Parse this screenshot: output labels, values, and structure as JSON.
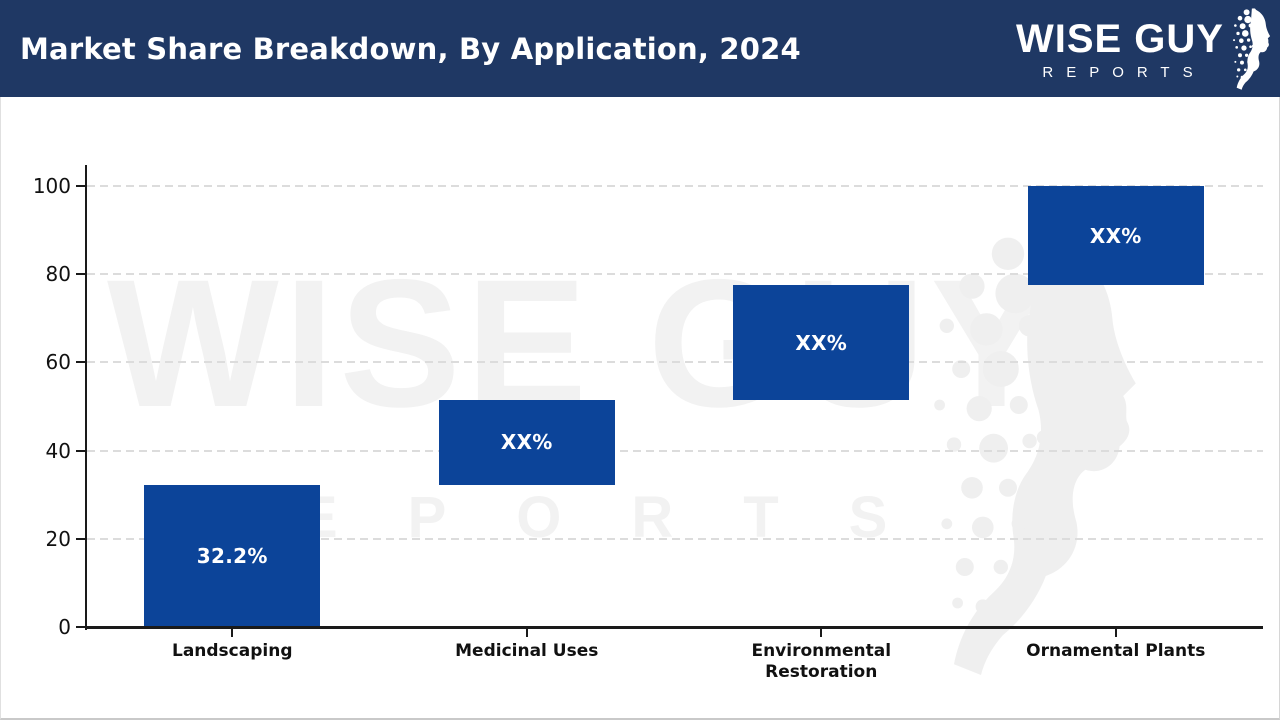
{
  "header": {
    "title": "Market Share Breakdown, By Application, 2024",
    "logo": {
      "line1": "WISE GUY",
      "line2": "REPORTS"
    }
  },
  "watermark": {
    "line1": "WISE GUY",
    "line2": "REPORTS"
  },
  "chart_data": {
    "type": "bar",
    "subtype": "floating-segment-waterfall",
    "title": "Market Share Breakdown, By Application, 2024",
    "categories": [
      "Landscaping",
      "Medicinal Uses",
      "Environmental Restoration",
      "Ornamental Plants"
    ],
    "segments": [
      {
        "category": "Landscaping",
        "start": 0,
        "end": 32.2,
        "label": "32.2%"
      },
      {
        "category": "Medicinal Uses",
        "start": 32.2,
        "end": 51.5,
        "label": "XX%"
      },
      {
        "category": "Environmental Restoration",
        "start": 51.5,
        "end": 77.5,
        "label": "XX%"
      },
      {
        "category": "Ornamental Plants",
        "start": 77.5,
        "end": 100,
        "label": "XX%"
      }
    ],
    "xlabel": "",
    "ylabel": "",
    "ylim": [
      0,
      100
    ],
    "yticks": [
      0,
      20,
      40,
      60,
      80,
      100
    ],
    "grid": {
      "axis": "y",
      "style": "dashed"
    },
    "legend_position": "none"
  },
  "colors": {
    "header_bg": "#1f3864",
    "bar": "#0c4499",
    "bar_label": "#ffffff",
    "grid": "#dcdcdc",
    "axis": "#1a1a1a",
    "tick_label": "#111111",
    "watermark": "#f2f2f2",
    "frame_border": "#c9c9c9"
  }
}
